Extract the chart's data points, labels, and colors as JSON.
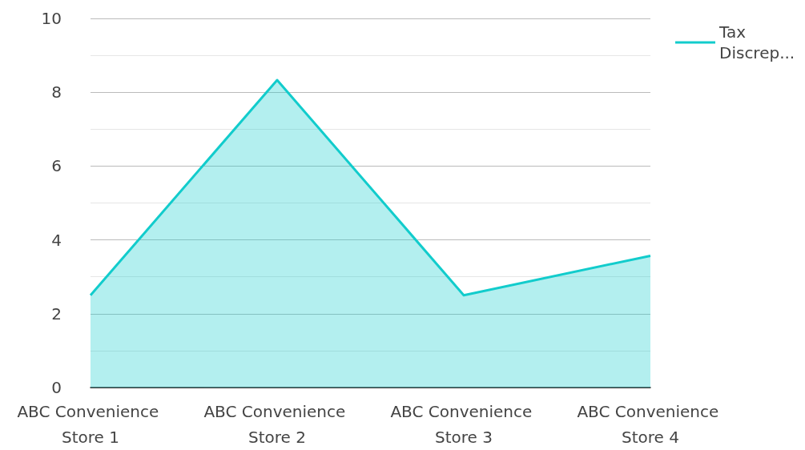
{
  "chart_data": {
    "type": "area",
    "categories": [
      "ABC Convenience Store 1",
      "ABC Convenience Store 2",
      "ABC Convenience Store 3",
      "ABC Convenience Store 4"
    ],
    "series": [
      {
        "name": "Tax Discrep...",
        "color": "#12cccc",
        "values": [
          2.5,
          8.33,
          2.5,
          3.57
        ]
      }
    ],
    "ylim": [
      0,
      10
    ],
    "yticks": [
      0,
      2,
      4,
      6,
      8,
      10
    ],
    "grid": "y",
    "legend": "top right",
    "marker": "none"
  }
}
